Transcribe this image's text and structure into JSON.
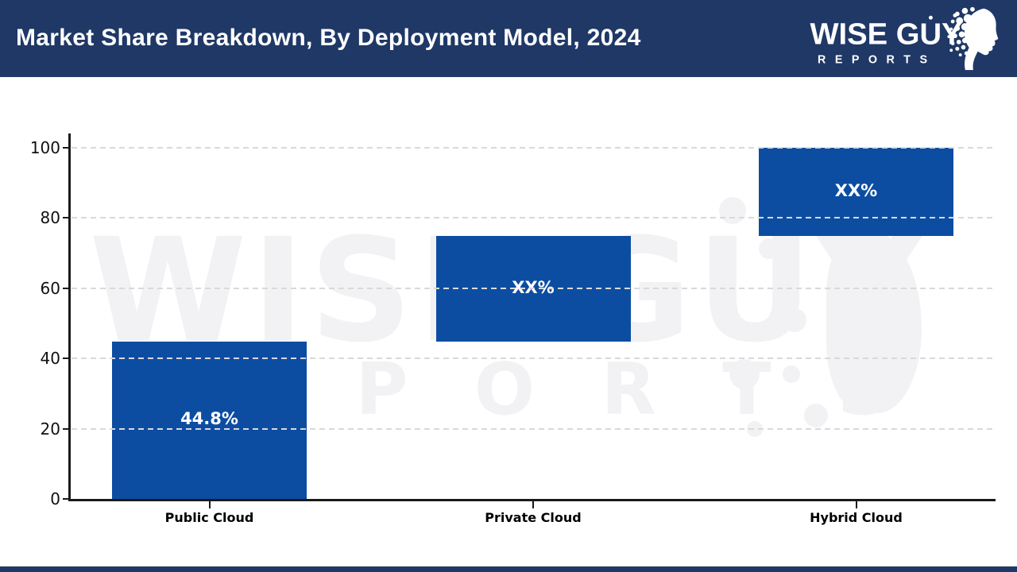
{
  "header": {
    "title": "Market Share Breakdown, By Deployment Model, 2024",
    "logo": {
      "primary": "WISE GUY",
      "secondary": "R E P O R T S"
    }
  },
  "watermark": {
    "line1": "WISE GUY",
    "line2": "R E P O R T S"
  },
  "chart_data": {
    "type": "bar",
    "subtype": "floating-waterfall",
    "title": "Market Share Breakdown, By Deployment Model, 2024",
    "categories": [
      "Public Cloud",
      "Private Cloud",
      "Hybrid Cloud"
    ],
    "segments": [
      {
        "category": "Public Cloud",
        "start": 0,
        "end": 44.8,
        "label": "44.8%"
      },
      {
        "category": "Private Cloud",
        "start": 44.8,
        "end": 74.8,
        "label": "XX%"
      },
      {
        "category": "Hybrid Cloud",
        "start": 74.8,
        "end": 100,
        "label": "XX%"
      }
    ],
    "visible_bar_labels": [
      "44.8%",
      "XX%",
      "XX%"
    ],
    "ylim": [
      0,
      100
    ],
    "yticks": [
      0,
      20,
      40,
      60,
      80,
      100
    ],
    "grid": "horizontal dashed, drawn over bars",
    "legend": "none"
  },
  "colors": {
    "header_bg": "#1F3866",
    "footer_bg": "#1F3866",
    "bar": "#0C4DA2",
    "bar_label_text": "#FFFFFF",
    "axis": "#1A1A1A",
    "gridline": "#D9D9D9",
    "tick_text": "#111111",
    "watermark": "#F2F2F5",
    "background": "#FFFFFF"
  }
}
